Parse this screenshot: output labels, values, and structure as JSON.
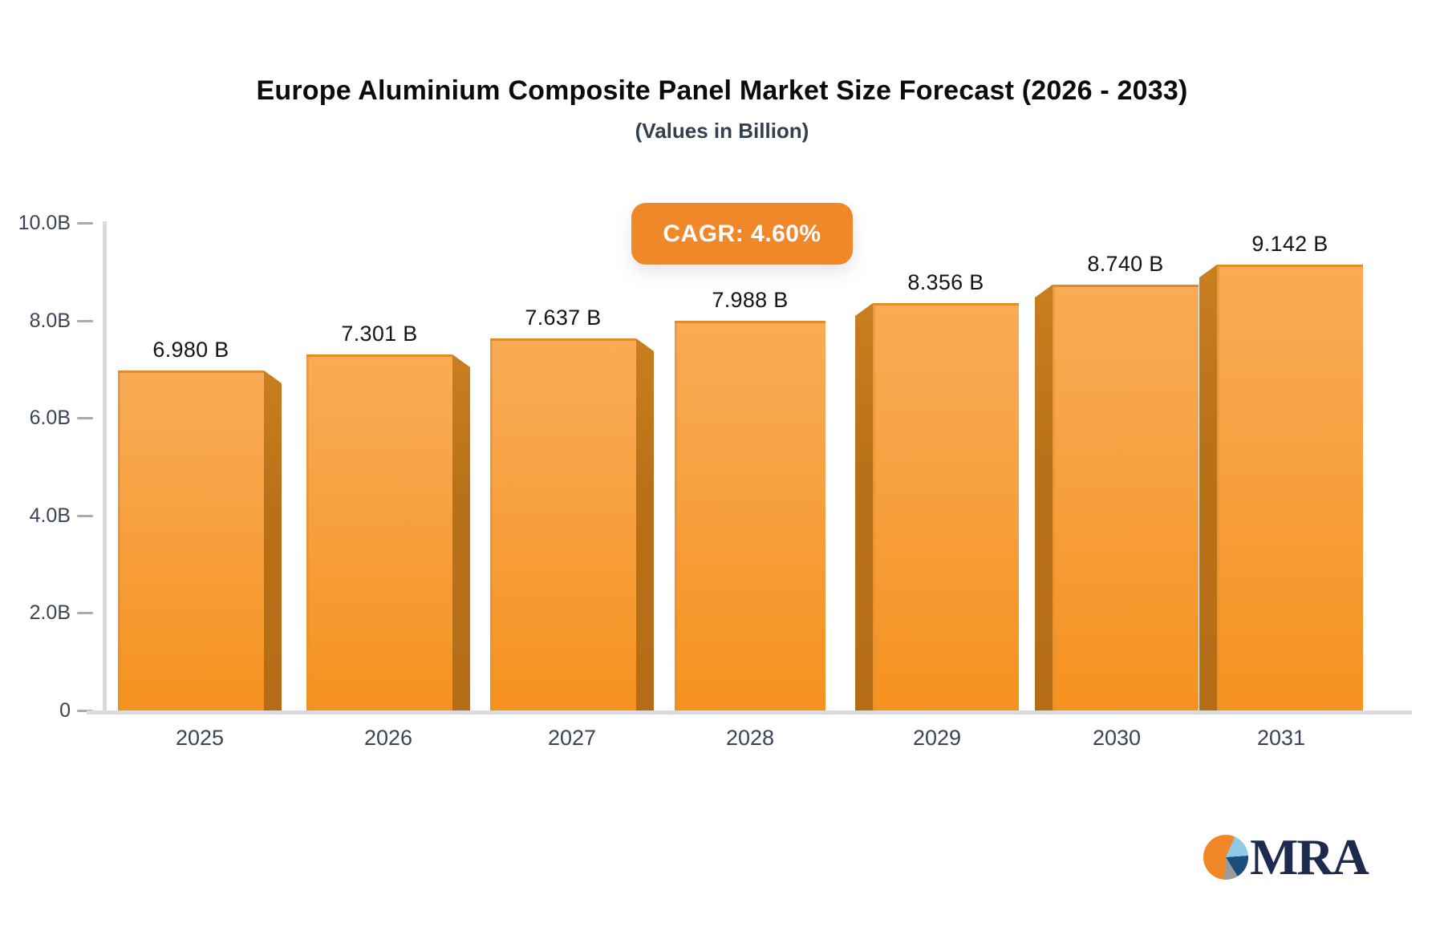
{
  "chart_data": {
    "type": "bar",
    "title": "Europe Aluminium Composite Panel Market Size Forecast (2026 - 2033)",
    "subtitle": "(Values in Billion)",
    "cagr_label": "CAGR: 4.60%",
    "categories": [
      "2025",
      "2026",
      "2027",
      "2028",
      "2029",
      "2030",
      "2031"
    ],
    "values": [
      6.98,
      7.301,
      7.637,
      7.988,
      8.356,
      8.74,
      9.142
    ],
    "value_labels": [
      "6.980 B",
      "7.301 B",
      "7.637 B",
      "7.988 B",
      "8.356 B",
      "8.740 B",
      "9.142 B"
    ],
    "ylim": [
      0,
      10
    ],
    "yticks": [
      {
        "label": "10.0B",
        "value": 10
      },
      {
        "label": "8.0B",
        "value": 8
      },
      {
        "label": "6.0B",
        "value": 6
      },
      {
        "label": "4.0B",
        "value": 4
      },
      {
        "label": "2.0B",
        "value": 2
      },
      {
        "label": "0",
        "value": 0
      }
    ],
    "grid": false,
    "legend": false,
    "colors": {
      "bar_top": "#f9ac55",
      "bar_bottom": "#f6921e",
      "bar_side": "#b97119",
      "badge": "#f0882a",
      "axis_line": "#d9dade",
      "axis_text": "#3a4454"
    }
  },
  "footer": {
    "logo_text": "MRA",
    "logo_pie_colors": {
      "orange": "#f0882a",
      "light_blue": "#8fc9e8",
      "navy": "#1c4e7b",
      "gray": "#9b9b9b"
    }
  }
}
